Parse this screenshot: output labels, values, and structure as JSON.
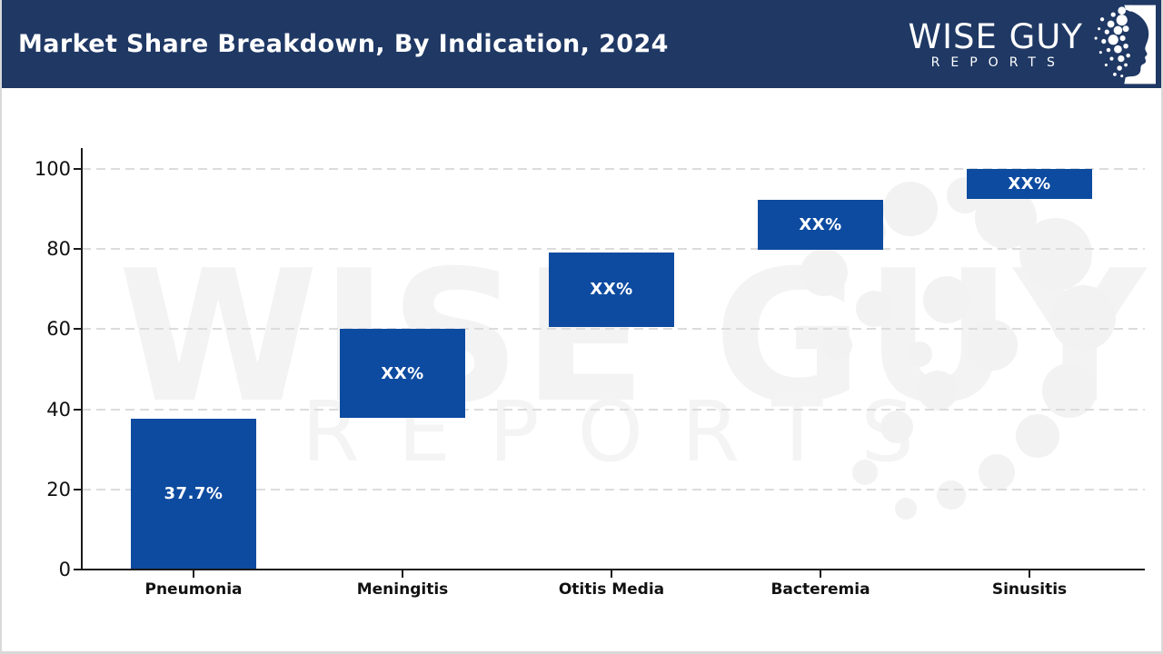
{
  "header": {
    "title": "Market Share Breakdown, By Indication, 2024",
    "bg_color": "#1f3864",
    "logo": {
      "line1": "WISE GUY",
      "line2": "REPORTS"
    }
  },
  "watermark": {
    "line1": "WISE GUY",
    "line2": "REPORTS"
  },
  "chart_data": {
    "type": "bar",
    "subtype": "waterfall-floating-bars",
    "title": "Market Share Breakdown, By Indication, 2024",
    "xlabel": "",
    "ylabel": "",
    "categories": [
      "Pneumonia",
      "Meningitis",
      "Otitis Media",
      "Bacteremia",
      "Sinusitis"
    ],
    "segments": [
      {
        "category": "Pneumonia",
        "start": 0,
        "end": 37.7,
        "label": "37.7%"
      },
      {
        "category": "Meningitis",
        "start": 37.8,
        "end": 60.1,
        "label": "XX%"
      },
      {
        "category": "Otitis Media",
        "start": 60.5,
        "end": 79.2,
        "label": "XX%"
      },
      {
        "category": "Bacteremia",
        "start": 79.9,
        "end": 92.4,
        "label": "XX%"
      },
      {
        "category": "Sinusitis",
        "start": 92.6,
        "end": 100,
        "label": "XX%"
      }
    ],
    "ylim": [
      0,
      105
    ],
    "yticks": [
      0,
      20,
      40,
      60,
      80,
      100
    ],
    "grid": "horizontal-dashed",
    "legend": "none",
    "bar_color": "#0d4ba0",
    "bar_label_color": "#ffffff",
    "axis_color": "#1a1a1a",
    "gridline_color": "#dcdcdc"
  }
}
